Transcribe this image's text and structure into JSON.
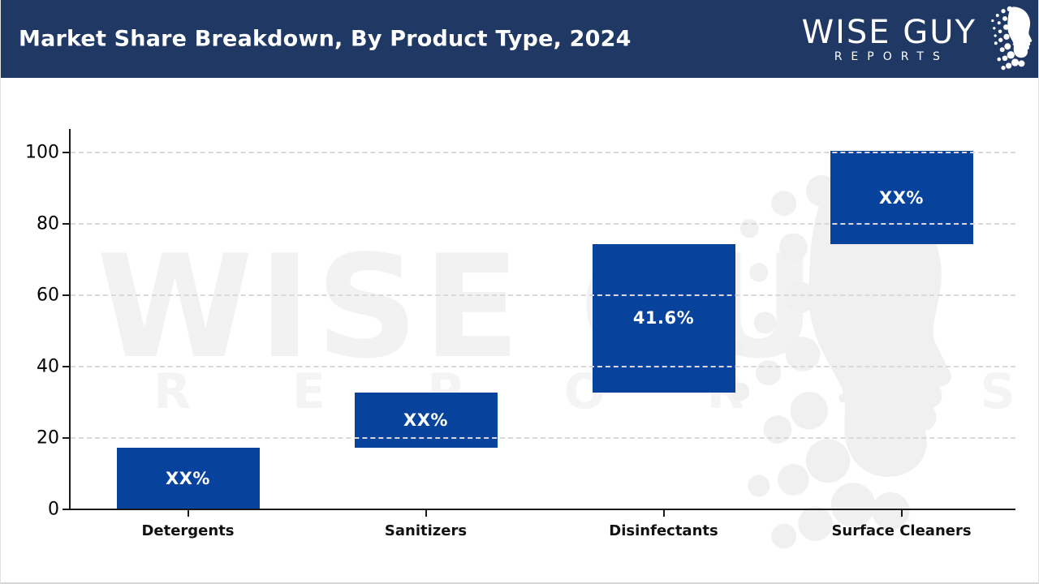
{
  "header": {
    "title": "Market Share Breakdown, By Product Type, 2024",
    "logo": {
      "line1": "WISE GUY",
      "line2": "REPORTS",
      "icon": "dot-face-profile-icon"
    }
  },
  "watermark": {
    "line1": "WISE GUY",
    "line2": "R E P O R T S",
    "icon": "dot-face-profile-watermark"
  },
  "colors": {
    "header_bg": "#1f3864",
    "bar": "#07439c",
    "grid": "#d9d9d9",
    "axis": "#1a1a1a",
    "watermark": "#f2f2f2",
    "background": "#ffffff",
    "bar_label": "#ffffff"
  },
  "chart_data": {
    "type": "bar",
    "variant": "floating-segment-waterfall",
    "title": "Market Share Breakdown, By Product Type, 2024",
    "xlabel": "",
    "ylabel": "",
    "ylim": [
      0,
      100
    ],
    "yticks": [
      0,
      20,
      40,
      60,
      80,
      100
    ],
    "grid": "horizontal-dashed",
    "legend": "none",
    "categories": [
      "Detergents",
      "Sanitizers",
      "Disinfectants",
      "Surface Cleaners"
    ],
    "segments": [
      {
        "category": "Detergents",
        "from": 0,
        "to": 17,
        "label": "XX%"
      },
      {
        "category": "Sanitizers",
        "from": 17,
        "to": 32.5,
        "label": "XX%"
      },
      {
        "category": "Disinfectants",
        "from": 32.5,
        "to": 74.1,
        "label": "41.6%"
      },
      {
        "category": "Surface Cleaners",
        "from": 74.1,
        "to": 100.2,
        "label": "XX%"
      }
    ]
  }
}
